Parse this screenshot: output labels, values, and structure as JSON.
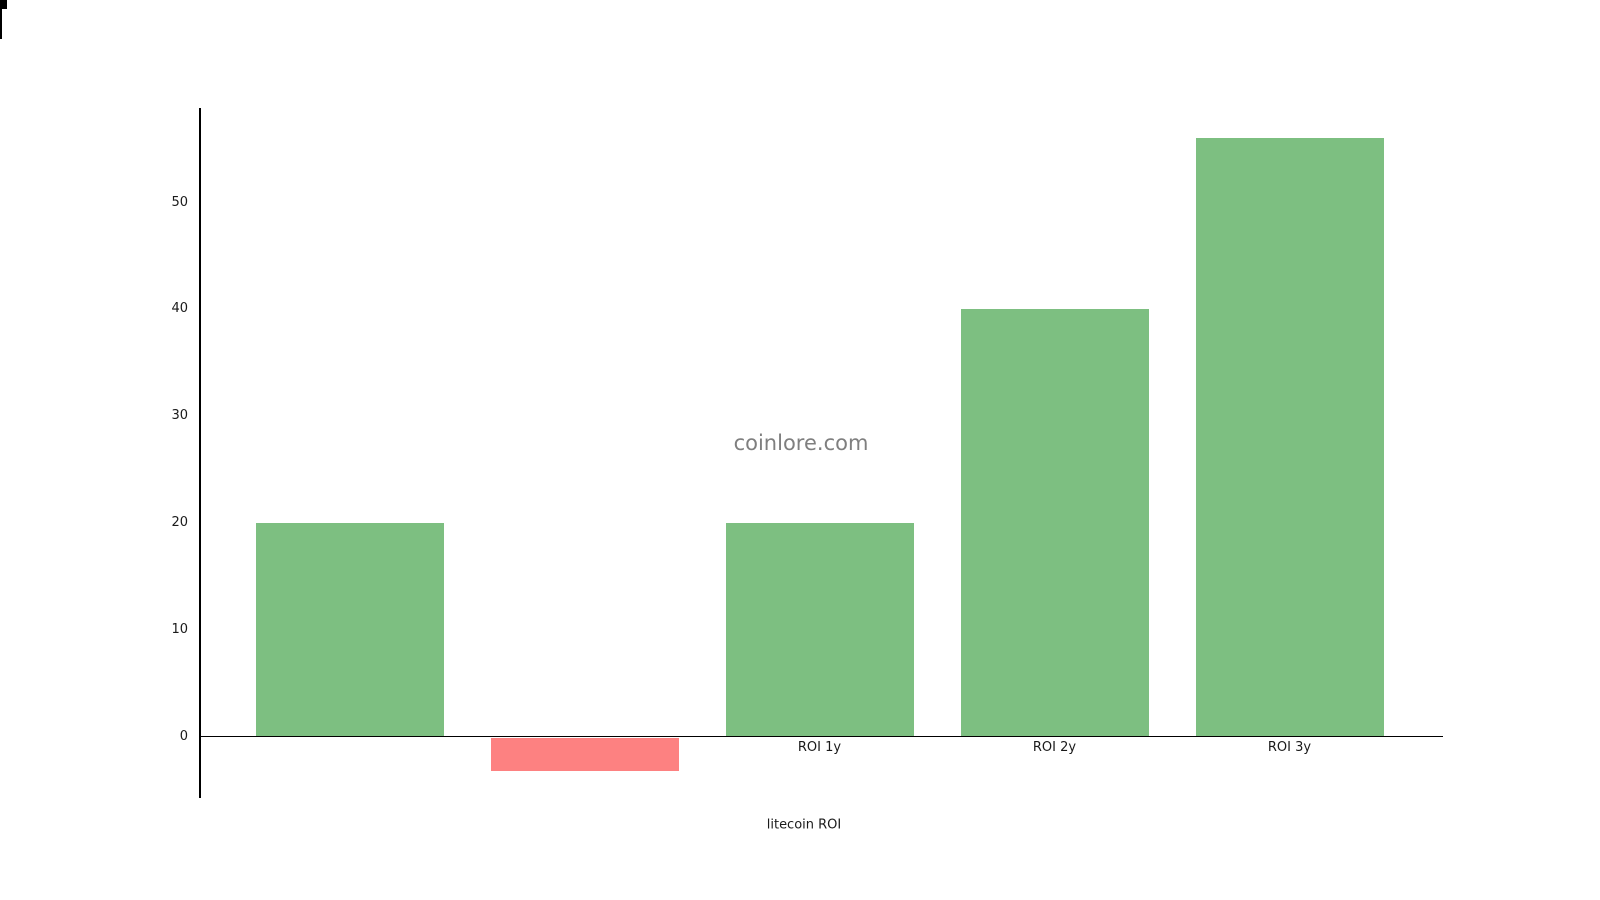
{
  "watermark": "coinlore.com",
  "chart_data": {
    "type": "bar",
    "title": "",
    "xlabel": "litecoin ROI",
    "ylabel": "",
    "categories": [
      "",
      "",
      "ROI 1y",
      "ROI 2y",
      "ROI 3y"
    ],
    "values": [
      20,
      -3.1,
      20,
      40,
      56
    ],
    "yticks": [
      0,
      10,
      20,
      30,
      40,
      50
    ],
    "ylim": [
      -5.5,
      58.8
    ],
    "grid": false,
    "legend": "none",
    "positive_color": "#7dbf81",
    "negative_color": "#fd8181",
    "axis_color": "#000000",
    "watermark_color": "#7f7f7f"
  }
}
